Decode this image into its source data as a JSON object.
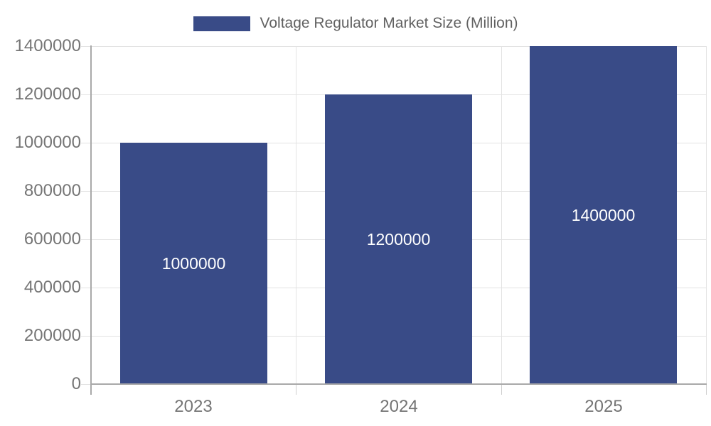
{
  "chart_data": {
    "type": "bar",
    "title": "Voltage Regulator Market Size (Million)",
    "categories": [
      "2023",
      "2024",
      "2025"
    ],
    "values": [
      1000000,
      1200000,
      1400000
    ],
    "bar_labels": [
      "1000000",
      "1200000",
      "1400000"
    ],
    "y_ticks": [
      0,
      200000,
      400000,
      600000,
      800000,
      1000000,
      1200000,
      1400000
    ],
    "y_tick_labels": [
      "0",
      "200000",
      "400000",
      "600000",
      "800000",
      "1000000",
      "1200000",
      "1400000"
    ],
    "ylim": [
      0,
      1400000
    ],
    "xlabel": "",
    "ylabel": "",
    "grid": true,
    "legend_position": "top-center",
    "legend_entries": [
      "Voltage Regulator Market Size (Million)"
    ]
  },
  "colors": {
    "bar": "#394b87",
    "grid": "#e3e3e3",
    "axis": "#a9a9a9",
    "bottom_tick": "#cfcfcf",
    "y_label": "#757575",
    "x_label": "#757575",
    "title": "#616161",
    "value_label": "#ffffff",
    "background": "#ffffff"
  }
}
